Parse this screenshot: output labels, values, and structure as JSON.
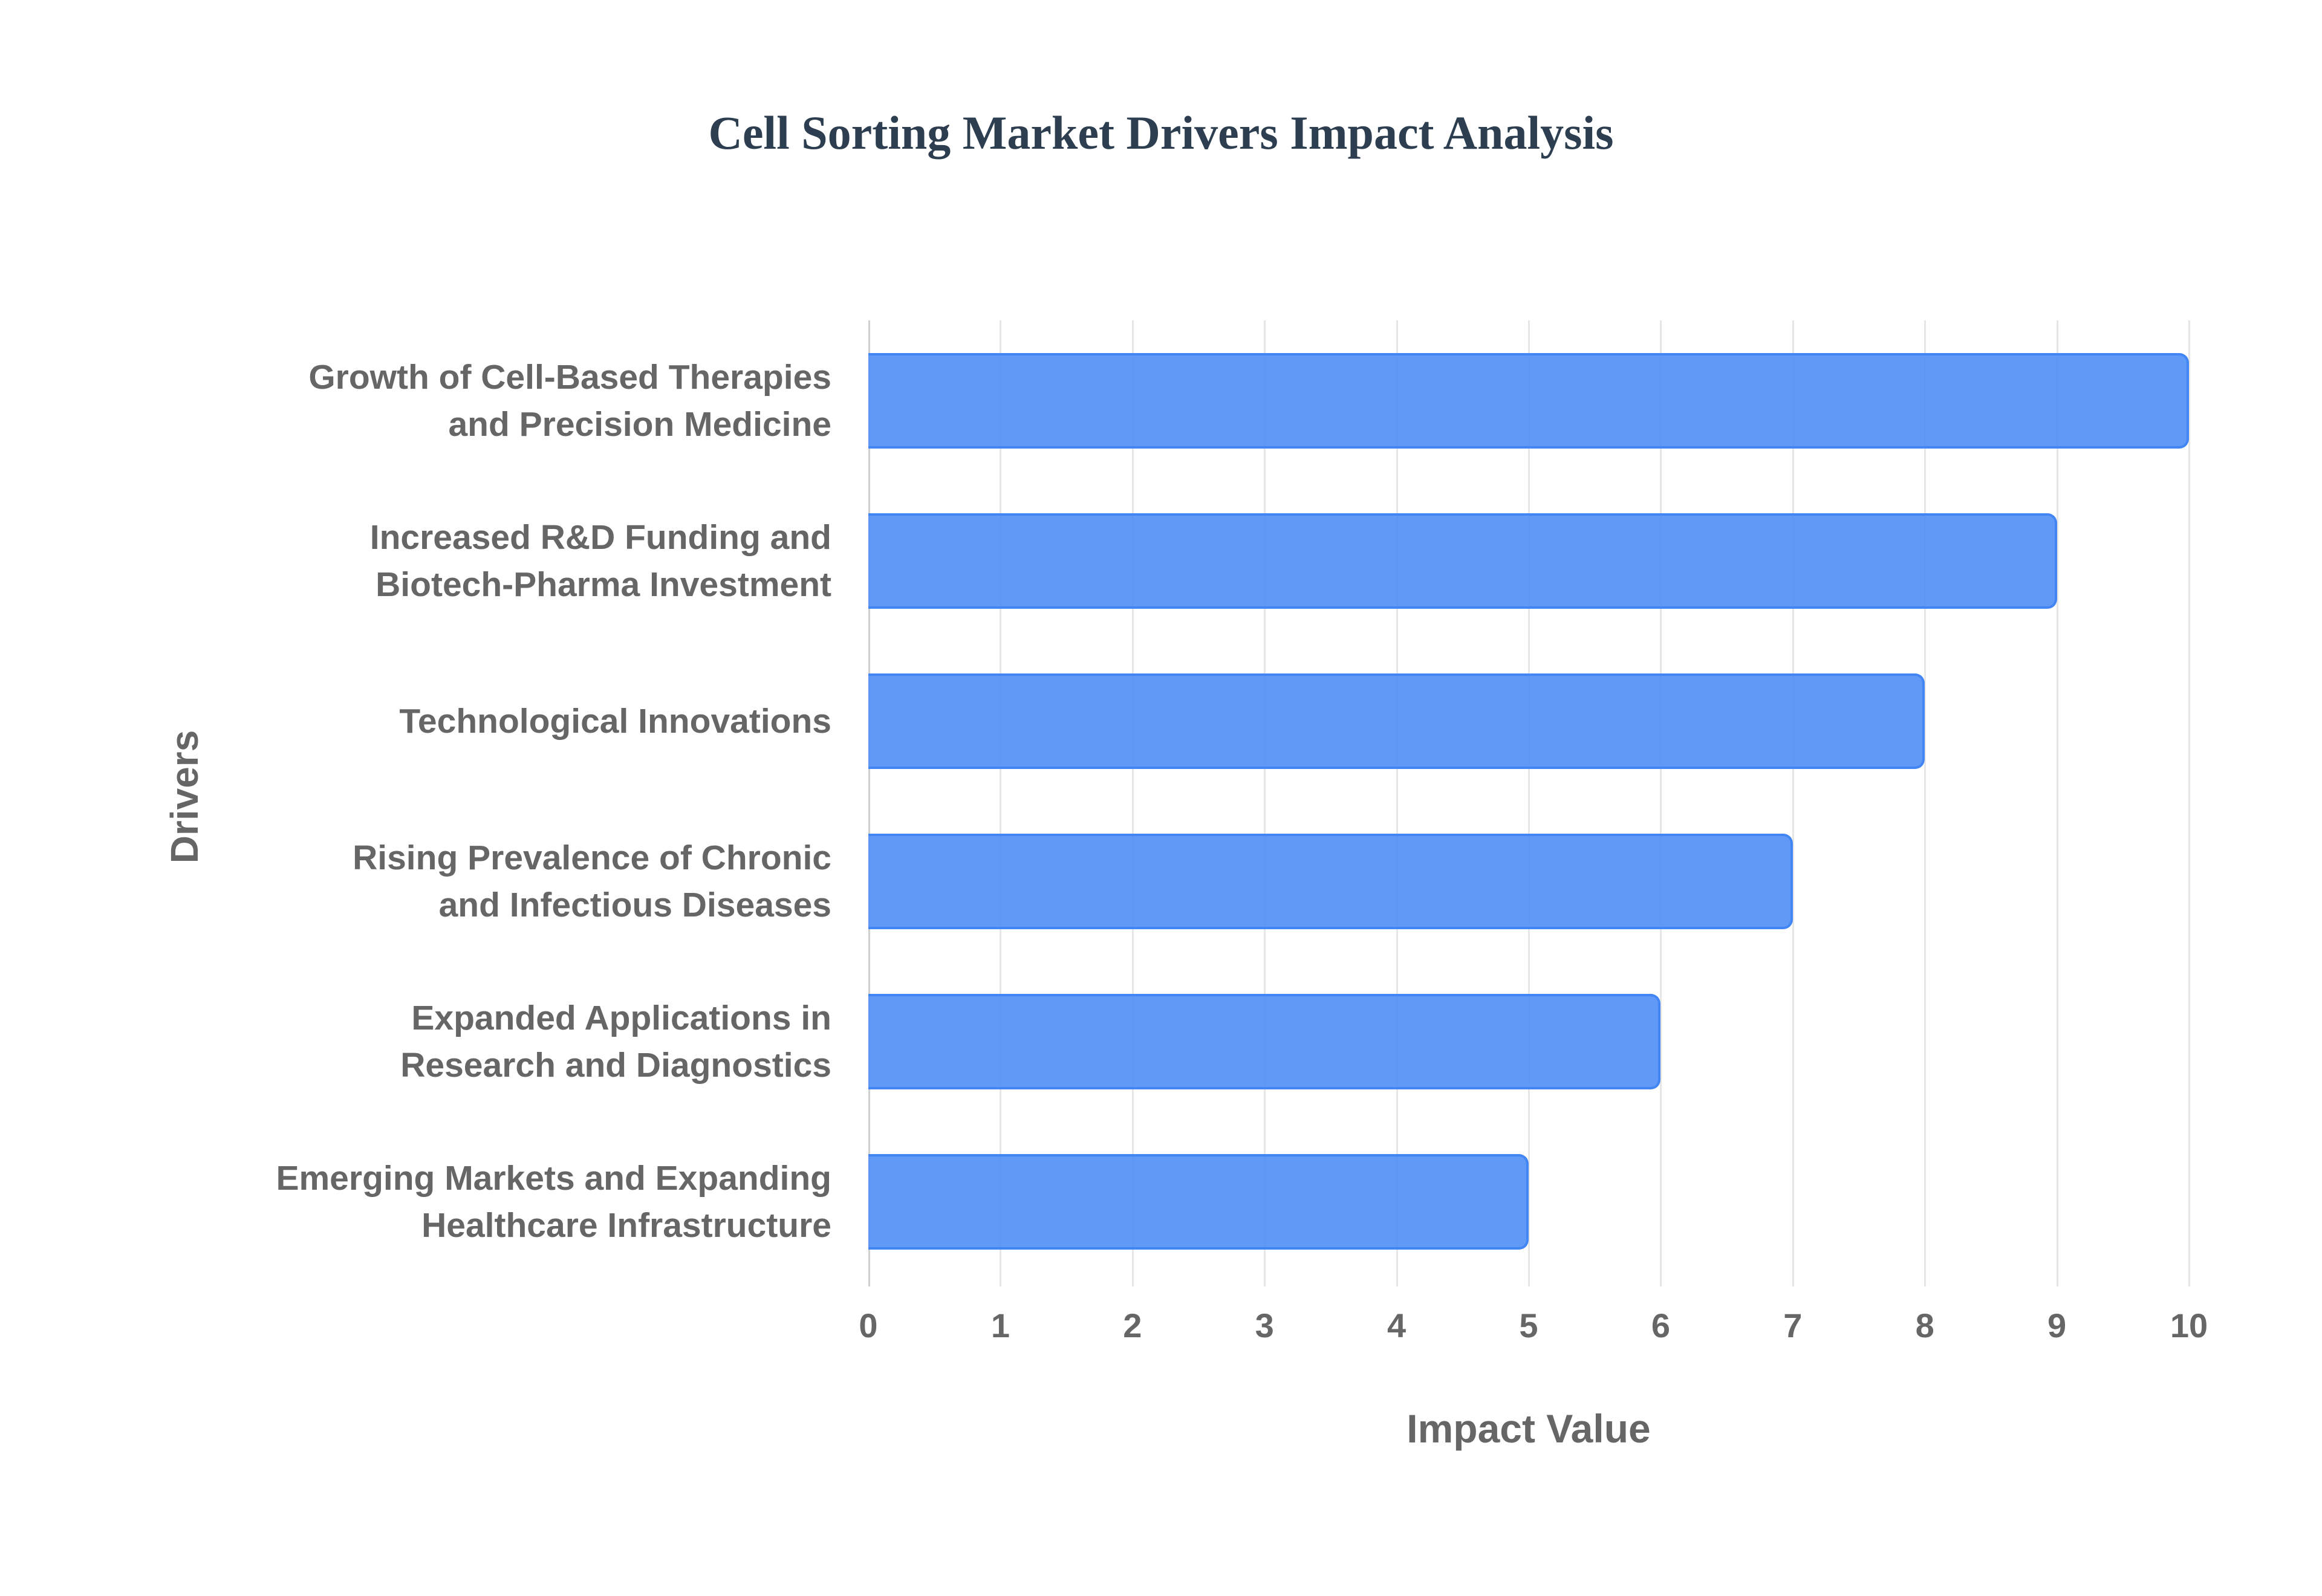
{
  "chart_data": {
    "type": "bar",
    "orientation": "horizontal",
    "title": "Cell Sorting Market Drivers Impact Analysis",
    "xlabel": "Impact Value",
    "ylabel": "Drivers",
    "xlim": [
      0,
      10
    ],
    "x_ticks": [
      "0",
      "1",
      "2",
      "3",
      "4",
      "5",
      "6",
      "7",
      "8",
      "9",
      "10"
    ],
    "grid": true,
    "legend": null,
    "categories": [
      [
        "Growth of Cell-Based Therapies",
        "and Precision Medicine"
      ],
      [
        "Increased R&D Funding and",
        "Biotech-Pharma Investment"
      ],
      [
        "Technological Innovations"
      ],
      [
        "Rising Prevalence of Chronic",
        "and Infectious Diseases"
      ],
      [
        "Expanded Applications in",
        "Research and Diagnostics"
      ],
      [
        "Emerging Markets and Expanding",
        "Healthcare Infrastructure"
      ]
    ],
    "values": [
      10,
      9,
      8,
      7,
      6,
      5
    ],
    "colors": {
      "bar_fill": "#5b96f5",
      "bar_border": "#4285f4",
      "title": "#2c3e50",
      "label": "#666666",
      "grid": "#e6e6e6"
    }
  }
}
